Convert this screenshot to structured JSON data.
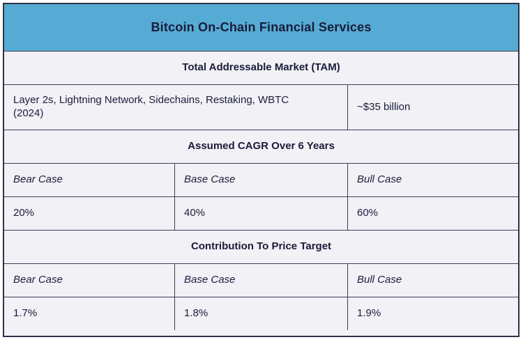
{
  "table": {
    "title": "Bitcoin On-Chain Financial Services",
    "colors": {
      "title_bg": "#55ABD3",
      "cell_bg": "#F1F1F6",
      "border": "#3D3D58",
      "text": "#1B1B3A"
    },
    "tam": {
      "header": "Total Addressable Market (TAM)",
      "description": "Layer 2s, Lightning Network, Sidechains, Restaking, WBTC (2024)",
      "value": "~$35 billion"
    },
    "cagr": {
      "header": "Assumed CAGR Over 6 Years",
      "cases": [
        "Bear Case",
        "Base Case",
        "Bull Case"
      ],
      "values": [
        "20%",
        "40%",
        "60%"
      ]
    },
    "contribution": {
      "header": "Contribution To Price Target",
      "cases": [
        "Bear Case",
        "Base Case",
        "Bull Case"
      ],
      "values": [
        "1.7%",
        "1.8%",
        "1.9%"
      ]
    }
  }
}
